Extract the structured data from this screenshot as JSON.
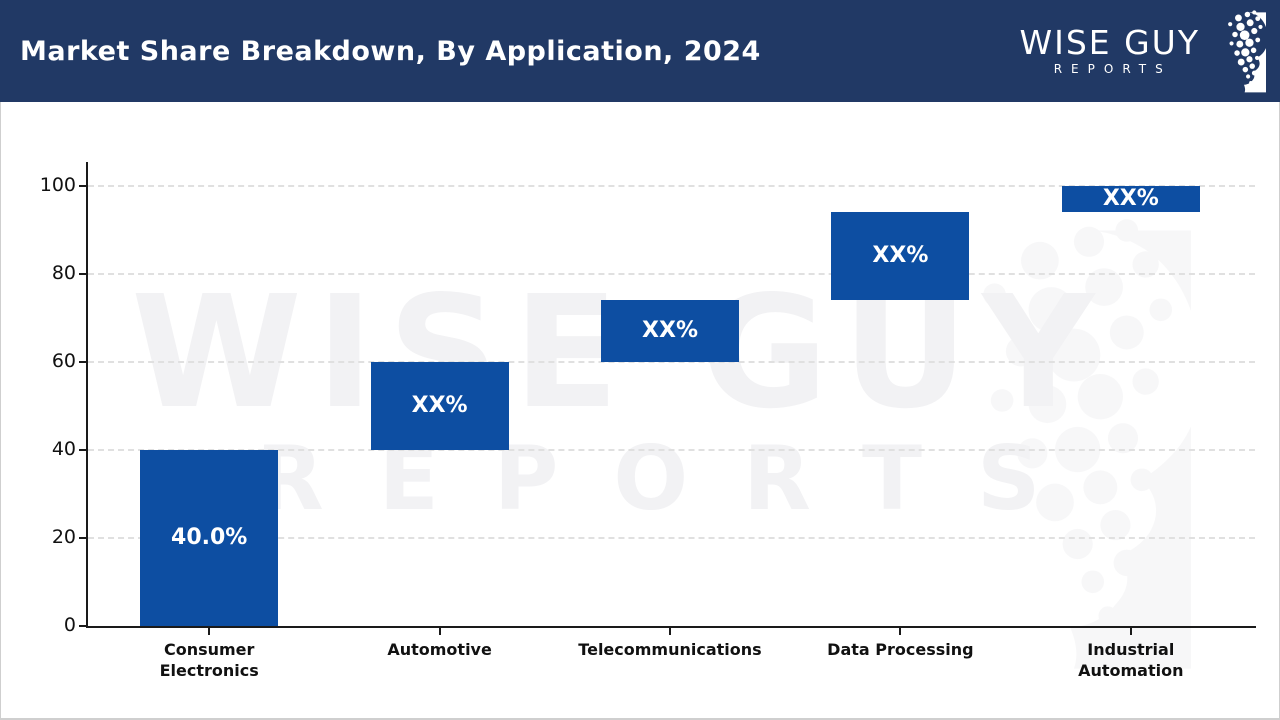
{
  "header": {
    "title": "Market Share Breakdown, By Application, 2024",
    "bg_color": "#213965",
    "logo": {
      "line1": "WISE GUY",
      "line2": "REPORTS"
    }
  },
  "watermark": {
    "line1": "WISE GUY",
    "line2": "REPORTS"
  },
  "chart_data": {
    "type": "bar",
    "subtype": "waterfall (cumulative market-share breakdown, single color)",
    "title": "Market Share Breakdown, By Application, 2024",
    "xlabel": "",
    "ylabel": "",
    "ylim": [
      0,
      105
    ],
    "yticks": [
      0,
      20,
      40,
      60,
      80,
      100
    ],
    "grid": "horizontal dashed light-gray",
    "legend": "none",
    "bar_color": "#0d4ea2",
    "bar_label_color": "#ffffff",
    "categories": [
      "Consumer Electronics",
      "Automotive",
      "Telecommunications",
      "Data Processing",
      "Industrial Automation"
    ],
    "series": [
      {
        "category": "Consumer Electronics",
        "lines": [
          "Consumer",
          "Electronics"
        ],
        "start": 0,
        "end": 40,
        "value": 40,
        "value_label": "40.0%"
      },
      {
        "category": "Automotive",
        "lines": [
          "Automotive"
        ],
        "start": 40,
        "end": 60,
        "value": 20,
        "value_label": "XX%"
      },
      {
        "category": "Telecommunications",
        "lines": [
          "Telecommunications"
        ],
        "start": 60,
        "end": 74,
        "value": 14,
        "value_label": "XX%"
      },
      {
        "category": "Data Processing",
        "lines": [
          "Data Processing"
        ],
        "start": 74,
        "end": 94,
        "value": 20,
        "value_label": "XX%"
      },
      {
        "category": "Industrial Automation",
        "lines": [
          "Industrial",
          "Automation"
        ],
        "start": 94,
        "end": 100,
        "value": 6,
        "value_label": "XX%"
      }
    ]
  }
}
